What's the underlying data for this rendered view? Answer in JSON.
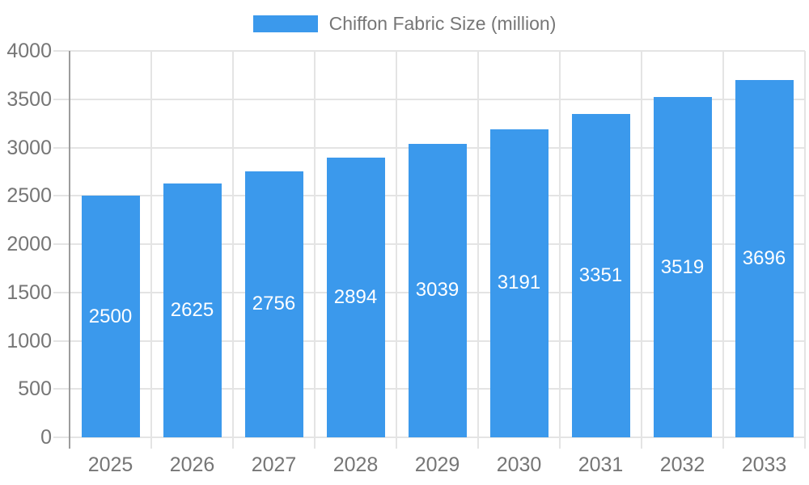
{
  "legend": {
    "label": "Chiffon Fabric Size (million)"
  },
  "chart_data": {
    "type": "bar",
    "title": "Chiffon Fabric Size (million)",
    "categories": [
      "2025",
      "2026",
      "2027",
      "2028",
      "2029",
      "2030",
      "2031",
      "2032",
      "2033"
    ],
    "values": [
      2500,
      2625,
      2756,
      2894,
      3039,
      3191,
      3351,
      3519,
      3696
    ],
    "xlabel": "",
    "ylabel": "",
    "ylim": [
      0,
      4000
    ],
    "ytick_step": 500,
    "ytick_labels": [
      "0",
      "500",
      "1000",
      "1500",
      "2000",
      "2500",
      "3000",
      "3500",
      "4000"
    ],
    "grid": true,
    "legend_position": "top",
    "bar_labels_inside": true,
    "colors": {
      "bar": "#3B99EC",
      "bar_label": "#FFFFFF",
      "grid": "#E4E4E4",
      "axis_line": "#9C9C9C",
      "axis_text": "#767676",
      "legend_text": "#767676",
      "background": "#FFFFFF"
    }
  }
}
